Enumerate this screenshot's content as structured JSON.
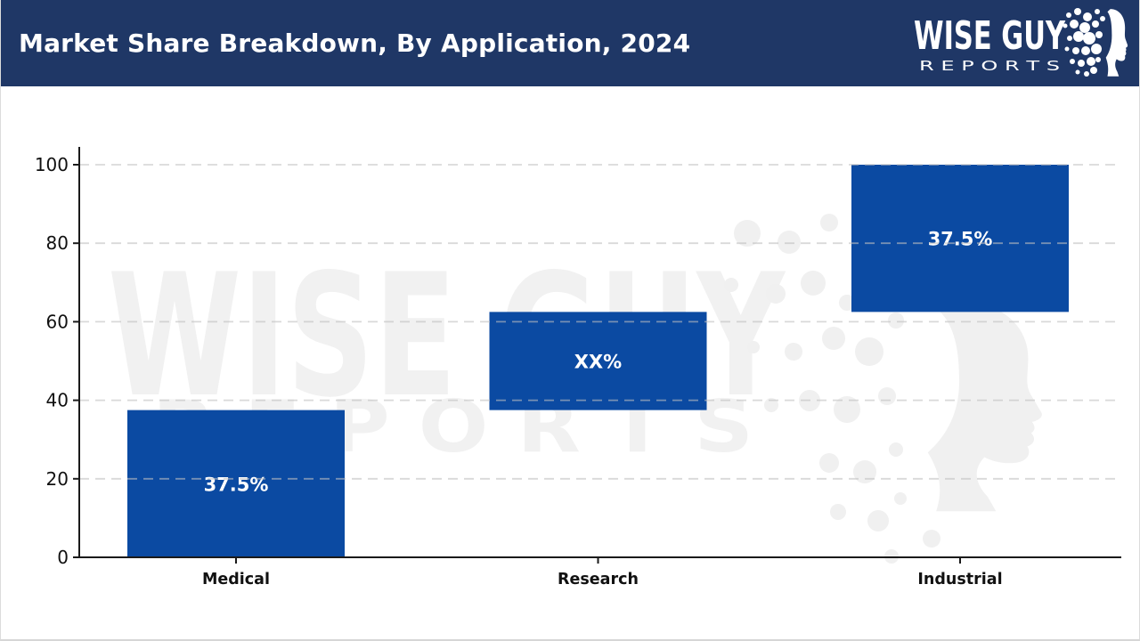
{
  "header": {
    "title": "Market Share Breakdown, By Application, 2024",
    "logo": {
      "line1": "WISE GUY",
      "line2": "R E P O R T S"
    }
  },
  "watermark": {
    "line1": "WISE GUY",
    "line2": "R E P O R T S"
  },
  "chart_data": {
    "type": "bar",
    "subtype": "floating-waterfall",
    "title": "Market Share Breakdown, By Application, 2024",
    "categories": [
      "Medical",
      "Research",
      "Industrial"
    ],
    "segments": [
      {
        "category": "Medical",
        "start": 0,
        "end": 37.5,
        "label": "37.5%"
      },
      {
        "category": "Research",
        "start": 37.5,
        "end": 62.5,
        "label": "XX%"
      },
      {
        "category": "Industrial",
        "start": 62.5,
        "end": 100,
        "label": "37.5%"
      }
    ],
    "yticks": [
      0,
      20,
      40,
      60,
      80,
      100
    ],
    "ylim": [
      0,
      104.5
    ],
    "xlabel": "",
    "ylabel": "",
    "grid": true,
    "grid_style": "dashed",
    "legend": false,
    "bar_color": "#0b4aa2",
    "bar_label_color": "#ffffff"
  },
  "colors": {
    "header_bg": "#1f3766",
    "title_text": "#ffffff",
    "bar": "#0b4aa2",
    "axis": "#1a1a1a",
    "tick_text": "#111111",
    "gridline": "#bfbfbf",
    "watermark_text": "#f1f1f1",
    "watermark_shape": "#f0f0f0",
    "logo_text": "#ffffff"
  }
}
